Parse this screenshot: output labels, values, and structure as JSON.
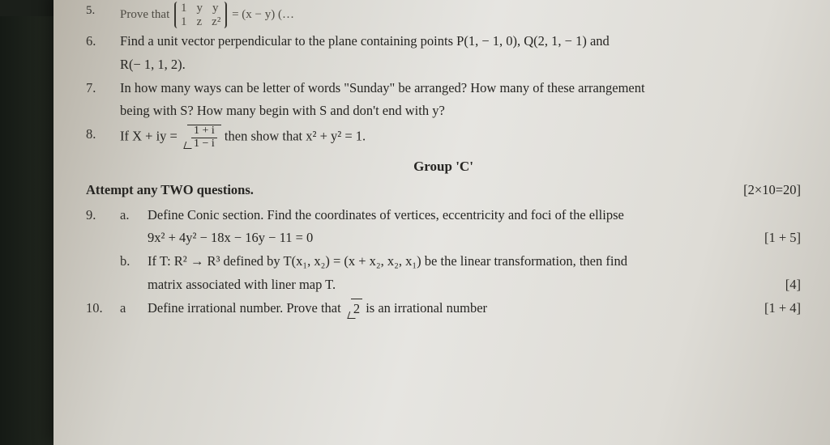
{
  "colors": {
    "page_bg": "#2a3530",
    "paper_mid": "#e6e5e1",
    "text": "#262522"
  },
  "typography": {
    "family": "Times New Roman",
    "base_size_pt": 12
  },
  "q5": {
    "num": "5.",
    "lead": "Prove that",
    "matrix_row1": [
      "1",
      "y",
      "y"
    ],
    "matrix_row2": [
      "1",
      "z",
      "z²"
    ],
    "rhs": "= (x − y) (…"
  },
  "q6": {
    "num": "6.",
    "text_a": "Find a unit vector perpendicular to the plane containing points P(1, − 1, 0), Q(2, 1, − 1) and",
    "text_b": "R(− 1, 1, 2)."
  },
  "q7": {
    "num": "7.",
    "text_a": "In how many ways can be letter of words \"Sunday\" be arranged? How many of these arrangement",
    "text_b": "being with S? How many begin with S and don't end with y?"
  },
  "q8": {
    "num": "8.",
    "lead": "If X + iy =",
    "frac_num": "1 + i",
    "frac_den": "1 − i",
    "tail": " then show that x² + y² = 1."
  },
  "groupC": {
    "head": "Group 'C'",
    "attempt": "Attempt any TWO questions.",
    "total": "[2×10=20]"
  },
  "q9": {
    "num": "9.",
    "a_label": "a.",
    "a_text": "Define Conic section. Find the coordinates of vertices, eccentricity and foci of the ellipse",
    "a_eq": "9x² + 4y² − 18x − 16y − 11 = 0",
    "a_marks": "[1 + 5]",
    "b_label": "b.",
    "b_line1": "If T: R² → R³ defined by T(x₁, x₂) = (x + x₂, x₂, x₁) be the linear transformation, then find",
    "b_line2": "matrix associated with liner map T.",
    "b_marks": "[4]"
  },
  "q10": {
    "num": "10.",
    "a_label": "a",
    "text_lead": "Define irrational number. Prove that ",
    "sqrt_arg": "2",
    "text_tail": " is an irrational number",
    "marks": "[1 + 4]"
  }
}
